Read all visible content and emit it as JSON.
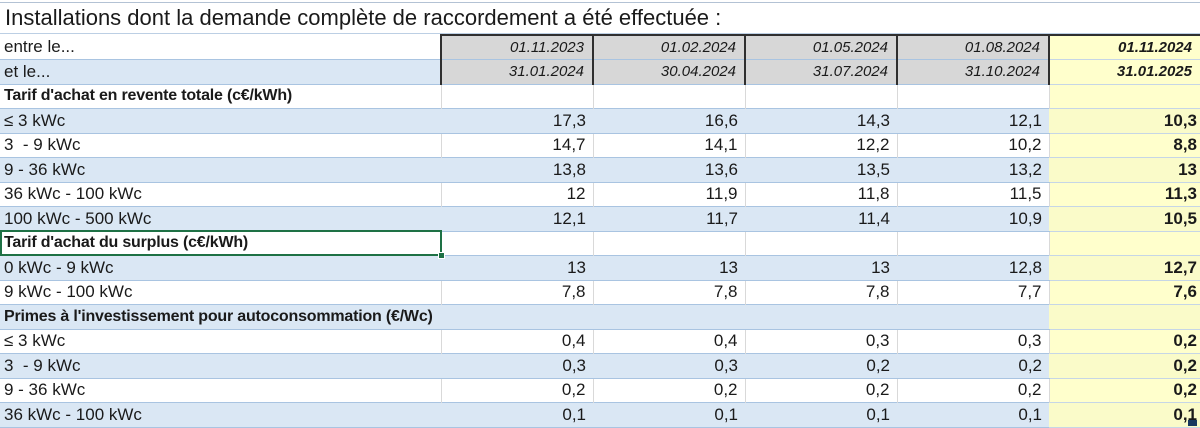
{
  "title": "Installations dont la demande complète de raccordement a été effectuée :",
  "colors": {
    "band_blue": "#dae7f4",
    "band_line_blue": "#a9c4e1",
    "header_gray": "#d7d7d7",
    "highlight_yellow": "#ffffcc",
    "dark_border": "#2f2f2f",
    "selection_green": "#1e7145",
    "gridline_gray": "#d9d9d9",
    "corner_marker_navy": "#17375e"
  },
  "table": {
    "period_rows": [
      {
        "label": "entre le...",
        "dates": [
          "01.11.2023",
          "01.02.2024",
          "01.05.2024",
          "01.08.2024"
        ],
        "highlight_date": "01.11.2024"
      },
      {
        "label": "et le...",
        "dates": [
          "31.01.2024",
          "30.04.2024",
          "31.07.2024",
          "31.10.2024"
        ],
        "highlight_date": "31.01.2025"
      }
    ],
    "sections": [
      {
        "title": "Tarif d'achat en revente totale (c€/kWh)",
        "selected": false,
        "rows": [
          {
            "label": "≤ 3 kWc",
            "values": [
              "17,3",
              "16,6",
              "14,3",
              "12,1"
            ],
            "highlight": "10,3"
          },
          {
            "label": "3  - 9 kWc",
            "values": [
              "14,7",
              "14,1",
              "12,2",
              "10,2"
            ],
            "highlight": "8,8"
          },
          {
            "label": "9 - 36 kWc",
            "values": [
              "13,8",
              "13,6",
              "13,5",
              "13,2"
            ],
            "highlight": "13"
          },
          {
            "label": "36 kWc - 100 kWc",
            "values": [
              "12",
              "11,9",
              "11,8",
              "11,5"
            ],
            "highlight": "11,3"
          },
          {
            "label": "100 kWc - 500 kWc",
            "values": [
              "12,1",
              "11,7",
              "11,4",
              "10,9"
            ],
            "highlight": "10,5"
          }
        ]
      },
      {
        "title": "Tarif d'achat du surplus (c€/kWh)",
        "selected": true,
        "rows": [
          {
            "label": "0 kWc - 9 kWc",
            "values": [
              "13",
              "13",
              "13",
              "12,8"
            ],
            "highlight": "12,7"
          },
          {
            "label": "9 kWc - 100 kWc",
            "values": [
              "7,8",
              "7,8",
              "7,8",
              "7,7"
            ],
            "highlight": "7,6"
          }
        ]
      },
      {
        "title": "Primes à l'investissement pour autoconsommation (€/Wc)",
        "selected": false,
        "rows": [
          {
            "label": "≤ 3 kWc",
            "values": [
              "0,4",
              "0,4",
              "0,3",
              "0,3"
            ],
            "highlight": "0,2"
          },
          {
            "label": "3  - 9 kWc",
            "values": [
              "0,3",
              "0,3",
              "0,2",
              "0,2"
            ],
            "highlight": "0,2"
          },
          {
            "label": "9 - 36 kWc",
            "values": [
              "0,2",
              "0,2",
              "0,2",
              "0,2"
            ],
            "highlight": "0,2"
          },
          {
            "label": "36 kWc - 100 kWc",
            "values": [
              "0,1",
              "0,1",
              "0,1",
              "0,1"
            ],
            "highlight": "0,1"
          }
        ]
      }
    ]
  }
}
